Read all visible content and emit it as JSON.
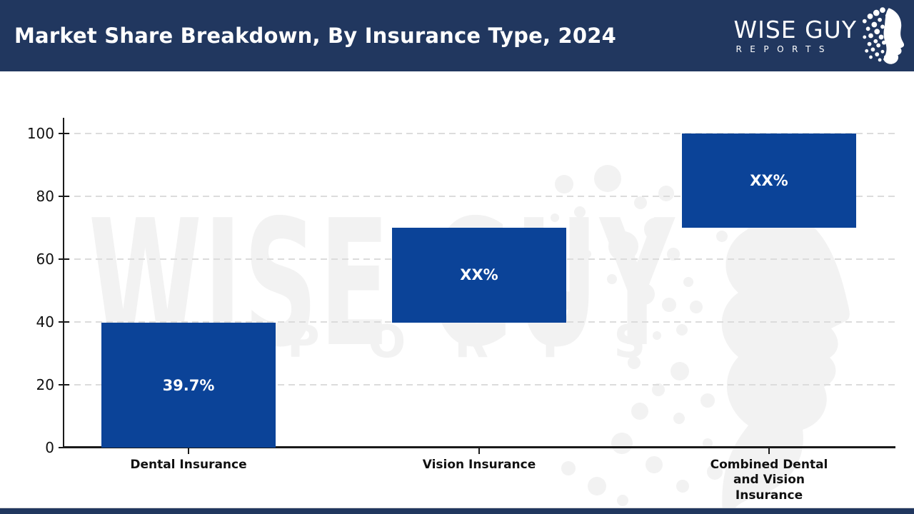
{
  "header": {
    "title": "Market Share Breakdown, By Insurance Type, 2024",
    "brand": {
      "line1": "WISE GUY",
      "line2": "REPORTS"
    }
  },
  "watermark": {
    "line1": "WISE GUY",
    "line2": "REPORTS"
  },
  "chart_data": {
    "type": "bar",
    "variant": "waterfall (floating segment bars)",
    "title": "Market Share Breakdown, By Insurance Type, 2024",
    "categories": [
      "Dental Insurance",
      "Vision Insurance",
      "Combined Dental and Vision Insurance"
    ],
    "bars": [
      {
        "category": "Dental Insurance",
        "start": 0,
        "end": 39.7,
        "label": "39.7%"
      },
      {
        "category": "Vision Insurance",
        "start": 39.7,
        "end": 70,
        "label": "XX%"
      },
      {
        "category": "Combined Dental and Vision Insurance",
        "start": 70,
        "end": 100,
        "label": "XX%"
      }
    ],
    "ylim": [
      0,
      100
    ],
    "yticks": [
      0,
      20,
      40,
      60,
      80,
      100
    ],
    "xlabel": "",
    "ylabel": "",
    "grid": {
      "horizontal": true,
      "style": "dashed"
    },
    "legend": null
  },
  "colors": {
    "header_bg": "#21375f",
    "footer_bg": "#21375f",
    "bar": "#0b4398",
    "bar_label": "#ffffff",
    "grid": "#dcdcdc",
    "axis": "#1a1a1a",
    "title_text": "#ffffff",
    "watermark": "#f2f2f2"
  }
}
